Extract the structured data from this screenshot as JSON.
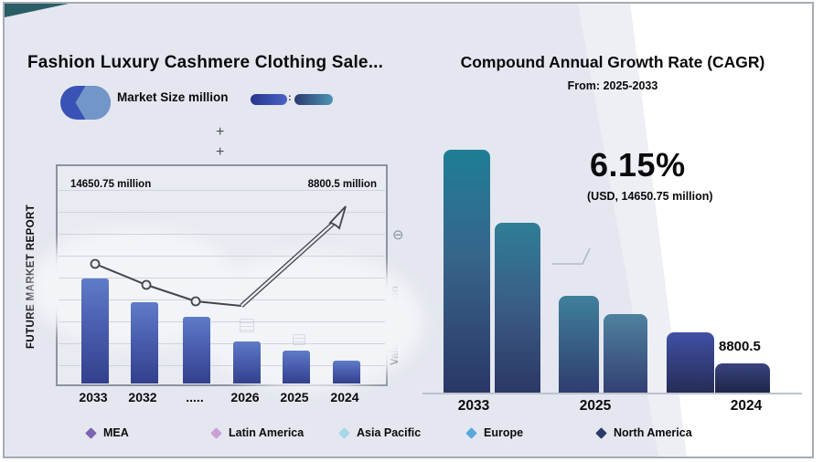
{
  "header_left": {
    "title": "Fashion Luxury Cashmere Clothing Sale...",
    "tag_label": "Market Size million",
    "ratio_separator": ":"
  },
  "header_right": {
    "title": "Compound Annual Growth Rate (CAGR)",
    "subtitle": "From: 2025-2033"
  },
  "left_chart": {
    "watermark": "FUTURE MARKET REPORT",
    "annotation_left": "14650.75 million",
    "annotation_right": "8800.5 million",
    "ylabel": "Value by million",
    "plus": "+",
    "minus_icon": "⊖"
  },
  "cagr": {
    "value": "6.15%",
    "basis": "(USD, 14650.75 million)",
    "data_label": "8800.5"
  },
  "legend": {
    "items": [
      {
        "label": "MEA",
        "color": "#7C63B4"
      },
      {
        "label": "Latin America",
        "color": "#C9A0D5"
      },
      {
        "label": "Asia Pacific",
        "color": "#A6D7EB"
      },
      {
        "label": "Europe",
        "color": "#58A8DC"
      },
      {
        "label": "North America",
        "color": "#2C3A69"
      }
    ]
  },
  "chart_data": [
    {
      "type": "bar",
      "title": "Fashion Luxury Cashmere Clothing Sale... Market Size million",
      "ylabel": "Value by million",
      "categories": [
        "2033",
        "2032",
        ".....",
        "2026",
        "2025",
        "2024"
      ],
      "values": [
        115,
        89,
        73,
        46,
        36,
        25
      ],
      "values_unit": "stylized bar heights in px; only endpoints carry labels",
      "point_labels": {
        "2033": "14650.75 million",
        "2024": "8800.5 million"
      },
      "overlay_line": {
        "type": "line-with-arrow",
        "description": "declining line with 3 circle markers then hand-drawn double-line arrow rising to top right",
        "marker_count": 3
      },
      "grid": true,
      "legend_position": "bottom"
    },
    {
      "type": "bar",
      "title": "Compound Annual Growth Rate (CAGR)",
      "subtitle": "From: 2025-2033",
      "cagr": "6.15%",
      "cagr_basis": "(USD, 14650.75 million)",
      "categories": [
        "2033",
        "2025",
        "2024"
      ],
      "series": [
        {
          "name": "series-a",
          "values": [
            267,
            107,
            67
          ]
        },
        {
          "name": "series-b",
          "values": [
            187,
            87,
            33
          ]
        }
      ],
      "values_unit": "stylized bar heights in px",
      "data_labels": [
        {
          "category": "2024",
          "series": "series-b",
          "label": "8800.5"
        }
      ],
      "grid": false
    }
  ]
}
